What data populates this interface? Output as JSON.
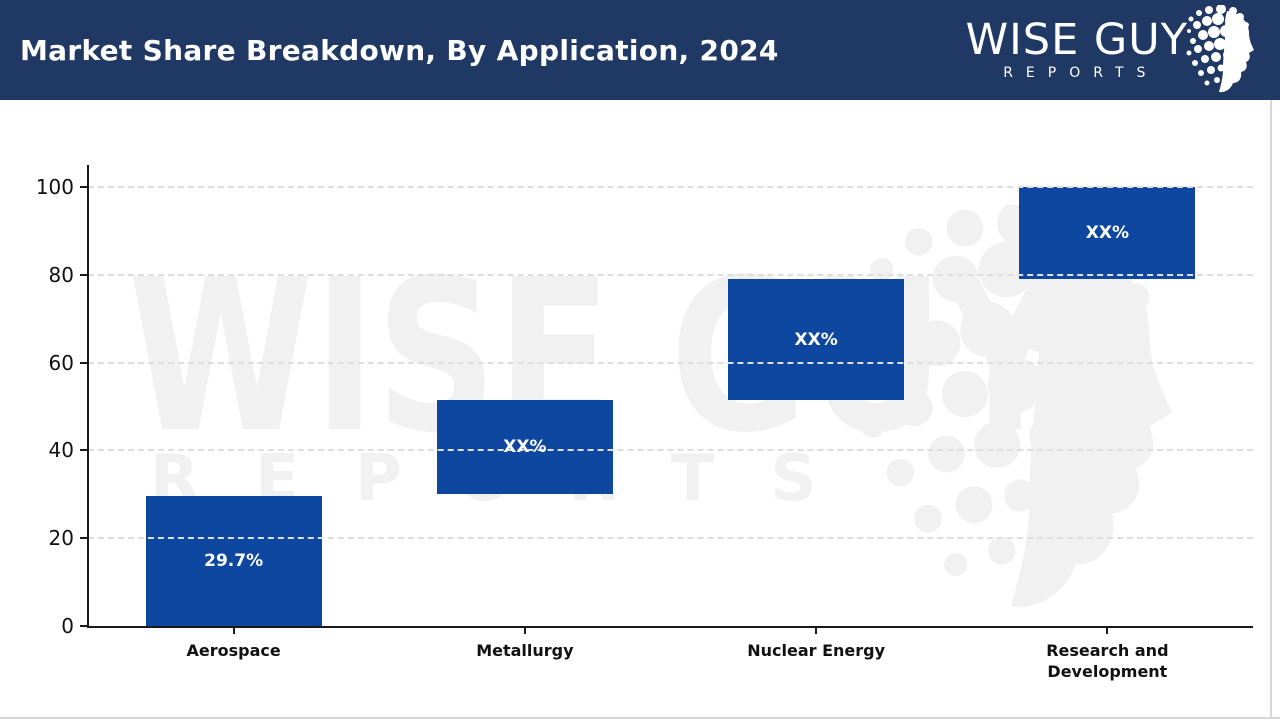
{
  "header": {
    "title": "Market Share Breakdown, By Application, 2024",
    "logo": {
      "name": "WISE GUY",
      "sub": "REPORTS"
    }
  },
  "watermark": {
    "text": "WISE GUY",
    "sub": "REPORTS"
  },
  "colors": {
    "header_bg": "#1f3864",
    "bar": "#0d47a0",
    "axis": "#1a1a1a",
    "grid": "#dedede",
    "bar_label": "#ffffff",
    "watermark": "#f1f1f1"
  },
  "chart_data": {
    "type": "bar",
    "subtype": "waterfall",
    "title": "Market Share Breakdown, By Application, 2024",
    "categories": [
      "Aerospace",
      "Metallurgy",
      "Nuclear Energy",
      "Research and Development"
    ],
    "segments": [
      {
        "category": "Aerospace",
        "start": 0,
        "end": 29.7,
        "label": "29.7%"
      },
      {
        "category": "Metallurgy",
        "start": 30,
        "end": 51.5,
        "label": "XX%"
      },
      {
        "category": "Nuclear Energy",
        "start": 51.5,
        "end": 79,
        "label": "XX%"
      },
      {
        "category": "Research and Development",
        "start": 79,
        "end": 100,
        "label": "XX%"
      }
    ],
    "yticks": [
      0,
      20,
      40,
      60,
      80,
      100
    ],
    "ylim": [
      0,
      105
    ],
    "xlabel": "",
    "ylabel": "",
    "grid": "horizontal-dashed",
    "legend": "none",
    "bar_color": "#0d47a0",
    "value_label_color": "#ffffff"
  }
}
